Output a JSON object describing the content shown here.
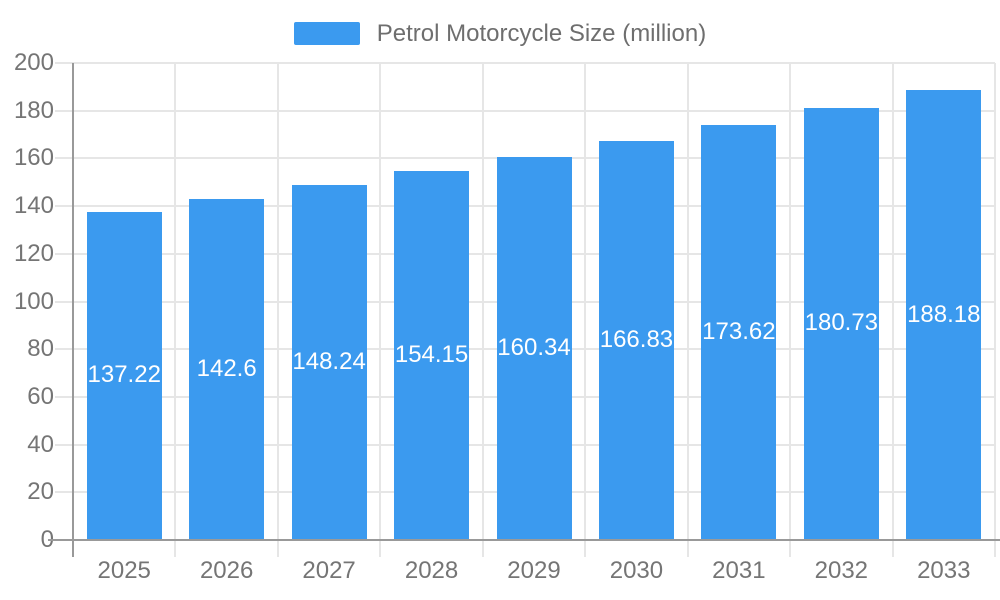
{
  "chart_data": {
    "type": "bar",
    "title": "",
    "legend": "Petrol Motorcycle Size (million)",
    "categories": [
      "2025",
      "2026",
      "2027",
      "2028",
      "2029",
      "2030",
      "2031",
      "2032",
      "2033"
    ],
    "values": [
      137.22,
      142.6,
      148.24,
      154.15,
      160.34,
      166.83,
      173.62,
      180.73,
      188.18
    ],
    "value_labels": [
      "137.22",
      "142.6",
      "148.24",
      "154.15",
      "160.34",
      "166.83",
      "173.62",
      "180.73",
      "188.18"
    ],
    "xlabel": "",
    "ylabel": "",
    "ylim": [
      0,
      200
    ],
    "ytick_step": 20,
    "ytick_labels": [
      "0",
      "20",
      "40",
      "60",
      "80",
      "100",
      "120",
      "140",
      "160",
      "180",
      "200"
    ],
    "grid": true,
    "legend_position": "top",
    "colors": {
      "bar": "#3B9AEF",
      "bar_label": "#FFFFFF",
      "axis": "#999999",
      "grid": "#E6E6E6",
      "tick_label": "#757575",
      "legend_text": "#6E6E6E",
      "background": "#FFFFFF"
    }
  }
}
